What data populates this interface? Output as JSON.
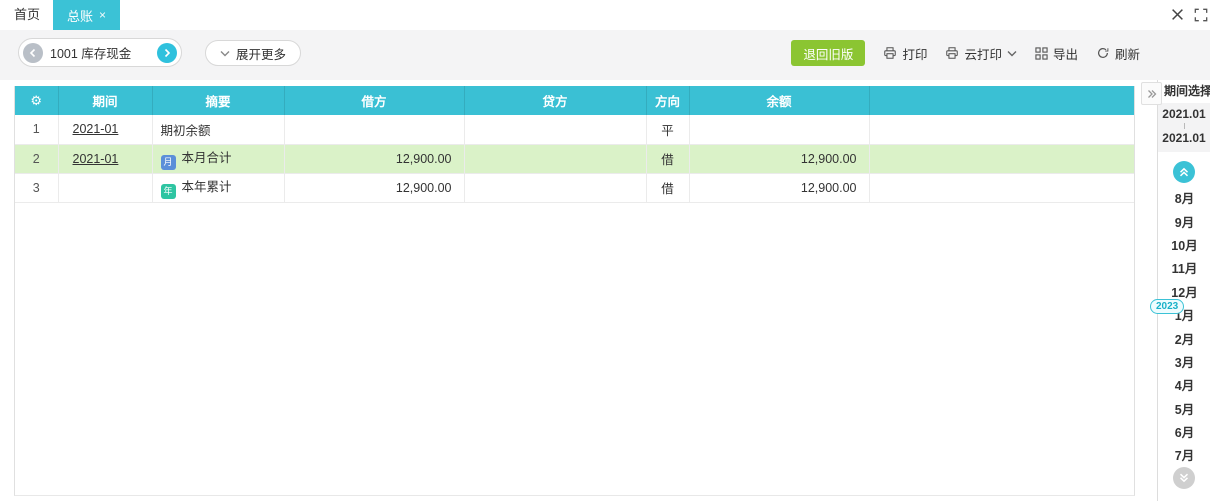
{
  "window": {
    "close_icon": "close",
    "fullscreen_icon": "fullscreen"
  },
  "tabs": {
    "home": "首页",
    "active": "总账",
    "active_close": "×"
  },
  "toolbar": {
    "account_nav": {
      "value": "1001 库存现金"
    },
    "expand_more_label": "展开更多",
    "back_old_label": "退回旧版",
    "print_label": "打印",
    "cloud_print_label": "云打印",
    "export_label": "导出",
    "refresh_label": "刷新"
  },
  "table": {
    "gear_icon": "⚙",
    "headers": [
      "期间",
      "摘要",
      "借方",
      "贷方",
      "方向",
      "余额"
    ],
    "rows": [
      {
        "num": "1",
        "period": "2021-01",
        "summary": "期初余额",
        "icon": "",
        "iconColor": "",
        "debit": "",
        "credit": "",
        "direction": "平",
        "balance": "",
        "highlight": false
      },
      {
        "num": "2",
        "period": "2021-01",
        "summary": "本月合计",
        "icon": "月",
        "iconColor": "blue",
        "debit": "12,900.00",
        "credit": "",
        "direction": "借",
        "balance": "12,900.00",
        "highlight": true
      },
      {
        "num": "3",
        "period": "",
        "summary": "本年累计",
        "icon": "年",
        "iconColor": "green",
        "debit": "12,900.00",
        "credit": "",
        "direction": "借",
        "balance": "12,900.00",
        "highlight": false
      }
    ]
  },
  "sidebar": {
    "title": "期间选择",
    "range_start": "2021.01",
    "range_end": "2021.01",
    "year_badge": "2023",
    "months": [
      "8月",
      "9月",
      "10月",
      "11月",
      "12月",
      "1月",
      "2月",
      "3月",
      "4月",
      "5月",
      "6月",
      "7月"
    ]
  },
  "colors": {
    "accent": "#3bc2d6",
    "table_header": "#3ac0d4",
    "green_button": "#8bc532",
    "highlight_row": "#daf2c8",
    "month_icon": "#5b8fd9",
    "year_icon": "#2ec5a2"
  }
}
